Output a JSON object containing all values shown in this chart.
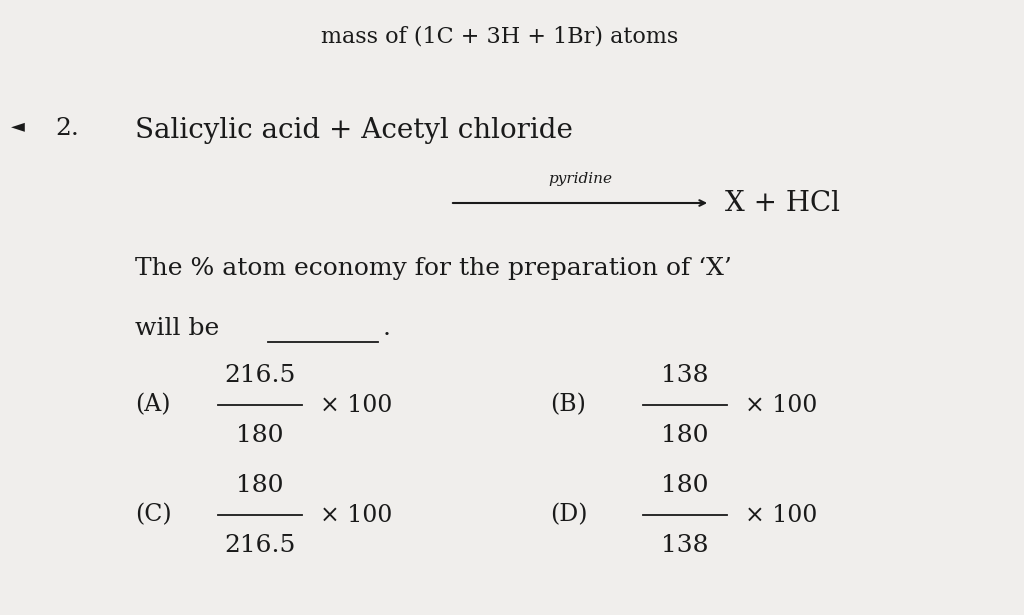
{
  "bg_color": "#f0eeec",
  "text_color": "#1a1a1a",
  "top_text": "mass of (1C + 3H + 1Br) atoms",
  "question_number": "2.",
  "arrow_marker": "◄",
  "q2_line1": "Salicylic acid + Acetyl chloride",
  "arrow_label": "pyridine",
  "arrow_right_text": "X + HCl",
  "body_text_line1": "The % atom economy for the preparation of ‘X’",
  "body_text_line2": "will be",
  "period": ".",
  "option_A_label": "(A)",
  "option_A_num": "216.5",
  "option_A_den": "180",
  "option_A_mul": "× 100",
  "option_B_label": "(B)",
  "option_B_num": "138",
  "option_B_den": "180",
  "option_B_mul": "× 100",
  "option_C_label": "(C)",
  "option_C_num": "180",
  "option_C_den": "216.5",
  "option_C_mul": "× 100",
  "option_D_label": "(D)",
  "option_D_num": "180",
  "option_D_den": "138",
  "option_D_mul": "× 100"
}
